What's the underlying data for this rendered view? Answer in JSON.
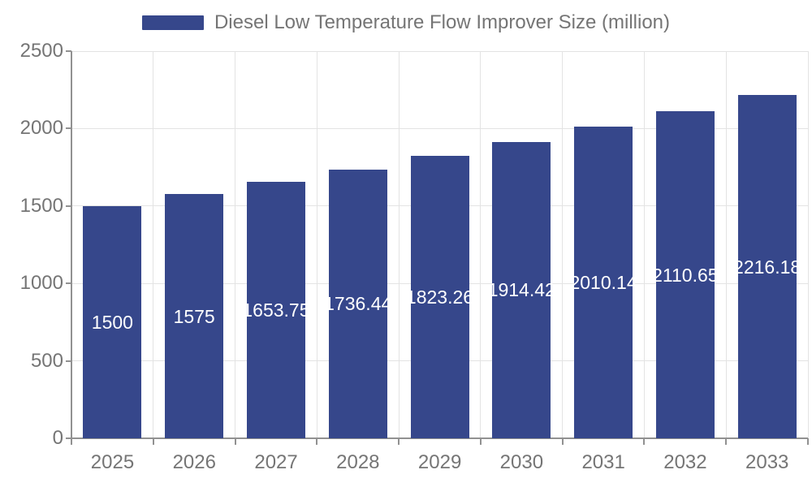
{
  "legend": {
    "label": "Diesel Low Temperature Flow Improver Size (million)"
  },
  "chart_data": {
    "type": "bar",
    "title": "Diesel Low Temperature Flow Improver Size (million)",
    "categories": [
      "2025",
      "2026",
      "2027",
      "2028",
      "2029",
      "2030",
      "2031",
      "2032",
      "2033"
    ],
    "values": [
      1500,
      1575,
      1653.75,
      1736.44,
      1823.26,
      1914.42,
      2010.14,
      2110.65,
      2216.18
    ],
    "value_labels": [
      "1500",
      "1575",
      "1653.75",
      "1736.44",
      "1823.26",
      "1914.42",
      "2010.14",
      "2110.65",
      "2216.18"
    ],
    "xlabel": "",
    "ylabel": "",
    "ylim": [
      0,
      2500
    ],
    "yticks": [
      0,
      500,
      1000,
      1500,
      2000,
      2500
    ],
    "grid": true,
    "legend_position": "top-center",
    "bar_color": "#36478b",
    "value_label_color": "#ffffff",
    "axis_text_color": "#757575",
    "gridline_color": "#e3e3e3",
    "axis_line_color": "#919191",
    "background_color": "#ffffff"
  }
}
